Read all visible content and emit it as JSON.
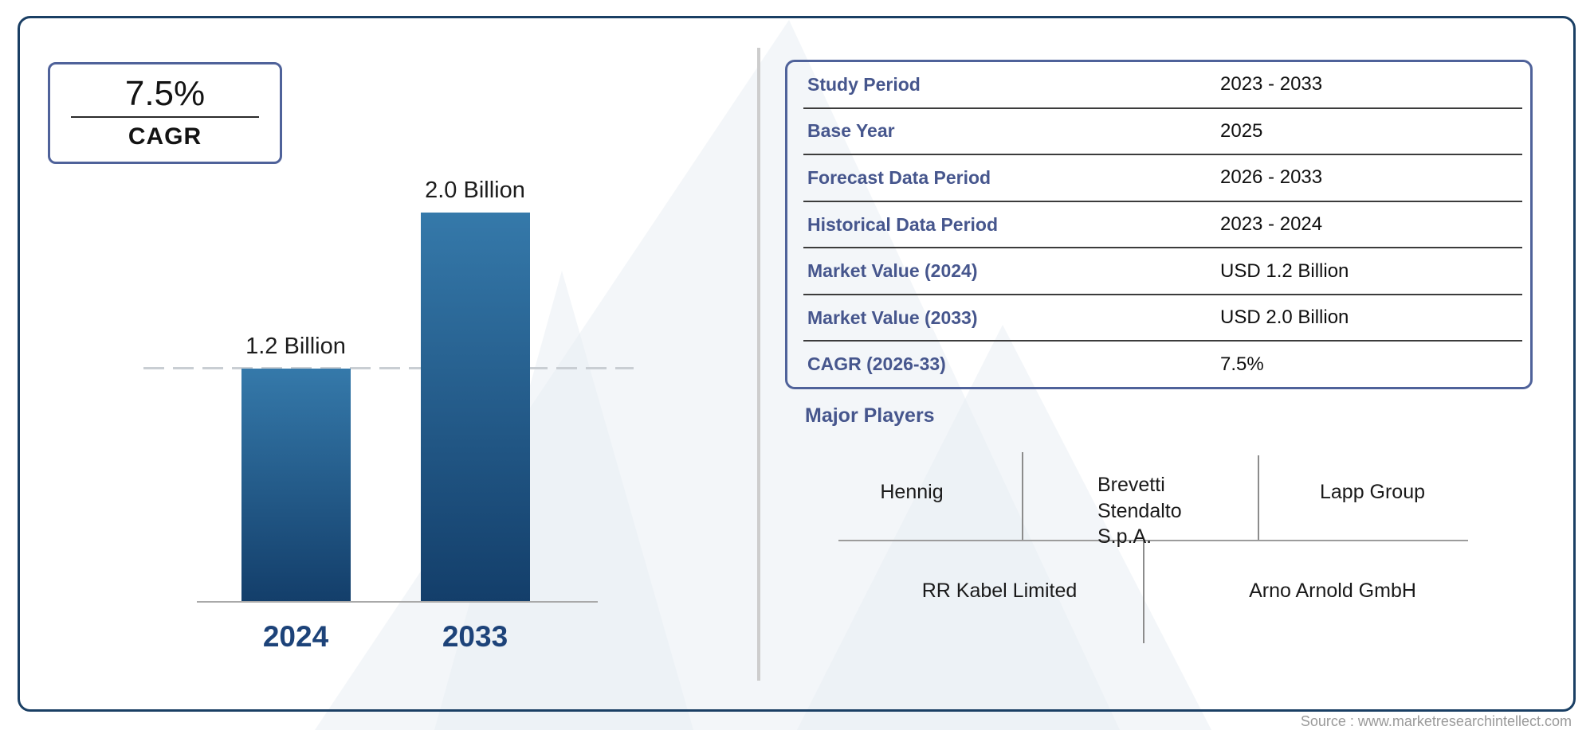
{
  "cagr_box": {
    "value": "7.5%",
    "label": "CAGR"
  },
  "chart_data": {
    "type": "bar",
    "title": "",
    "xlabel": "",
    "ylabel": "",
    "categories": [
      "2024",
      "2033"
    ],
    "values": [
      1.2,
      2.0
    ],
    "value_labels": [
      "1.2 Billion",
      "2.0 Billion"
    ],
    "unit": "USD Billion",
    "ylim": [
      0,
      2.2
    ],
    "gridlines": false,
    "legend": "none",
    "reference_line_value": 1.2,
    "bar_color_top": "#3579aa",
    "bar_color_bottom": "#133e6a"
  },
  "info_table": {
    "rows": [
      {
        "label": "Study Period",
        "value": "2023 - 2033"
      },
      {
        "label": "Base Year",
        "value": "2025"
      },
      {
        "label": "Forecast Data Period",
        "value": "2026 - 2033"
      },
      {
        "label": "Historical Data Period",
        "value": "2023 - 2024"
      },
      {
        "label": "Market Value (2024)",
        "value": "USD 1.2 Billion"
      },
      {
        "label": "Market Value (2033)",
        "value": "USD 2.0 Billion"
      },
      {
        "label": "CAGR (2026-33)",
        "value": "7.5%"
      }
    ]
  },
  "major_players": {
    "title": "Major Players",
    "row_top": [
      "Hennig",
      "Brevetti Stendalto S.p.A.",
      "Lapp Group"
    ],
    "row_bottom": [
      "RR Kabel Limited",
      "Arno Arnold GmbH"
    ]
  },
  "source": "Source : www.marketresearchintellect.com",
  "colors": {
    "frame_border": "#1a3f64",
    "box_border": "#4f629a",
    "table_label": "#46568d",
    "year_label": "#1d4379",
    "bar_top": "#3579aa",
    "bar_bottom": "#133e6a",
    "watermark": "#e7edf4"
  }
}
